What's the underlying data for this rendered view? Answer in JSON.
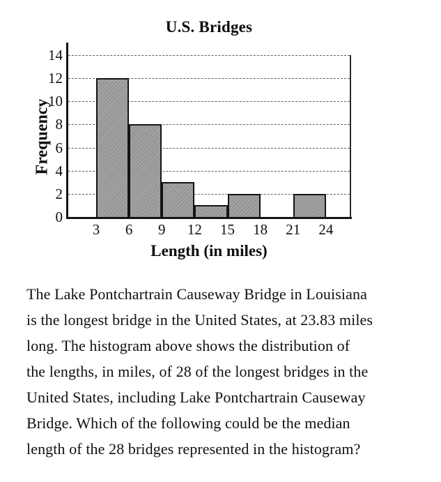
{
  "chart": {
    "title": "U.S. Bridges",
    "ylabel": "Frequency",
    "xlabel": "Length (in miles)"
  },
  "chart_data": {
    "type": "bar",
    "subtype": "histogram",
    "title": "U.S. Bridges",
    "xlabel": "Length (in miles)",
    "ylabel": "Frequency",
    "bin_edges": [
      3,
      6,
      9,
      12,
      15,
      18,
      21,
      24
    ],
    "categories": [
      "3-6",
      "6-9",
      "9-12",
      "12-15",
      "15-18",
      "18-21",
      "21-24"
    ],
    "values": [
      12,
      8,
      3,
      1,
      2,
      0,
      2
    ],
    "total_count": 28,
    "xticks": [
      "3",
      "6",
      "9",
      "12",
      "15",
      "18",
      "21",
      "24"
    ],
    "yticks": [
      0,
      2,
      4,
      6,
      8,
      10,
      12,
      14
    ],
    "ylim": [
      0,
      14
    ],
    "grid": "horizontal dashed",
    "legend": "none",
    "colors": {
      "bar_fill": "#9b9b9b",
      "bar_border": "#141414",
      "gridline": "#5f5f5f",
      "axis": "#151515",
      "text": "#101010"
    }
  },
  "problem": {
    "lines": [
      "The Lake Pontchartrain Causeway Bridge in Louisiana",
      "is the longest bridge in the United States, at 23.83 miles",
      "long. The histogram above shows the distribution of",
      "the lengths, in miles, of 28 of the longest bridges in the",
      "United States, including Lake Pontchartrain Causeway",
      "Bridge. Which of the following could be the median",
      "length of the 28 bridges represented in the histogram?"
    ]
  }
}
